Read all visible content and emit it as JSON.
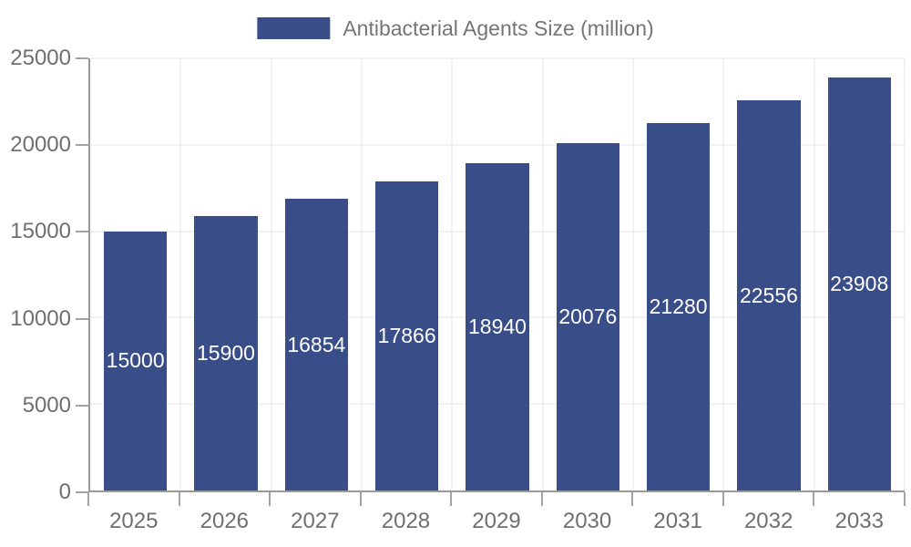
{
  "chart_data": {
    "type": "bar",
    "legend": {
      "label": "Antibacterial Agents Size (million)"
    },
    "categories": [
      "2025",
      "2026",
      "2027",
      "2028",
      "2029",
      "2030",
      "2031",
      "2032",
      "2033"
    ],
    "values": [
      15000,
      15900,
      16854,
      17866,
      18940,
      20076,
      21280,
      22556,
      23908
    ],
    "yticks": [
      0,
      5000,
      10000,
      15000,
      20000,
      25000
    ],
    "ylim": [
      0,
      25000
    ],
    "grid": "horizontal and vertical light gridlines",
    "legend_position": "top-center",
    "colors": {
      "bar": "#394d88",
      "value_label": "#ffffff",
      "axis_line": "#9a9a9a",
      "tick": "#a3a3a3",
      "gridline": "#e6e6ea",
      "axis_text": "#6f6f6f",
      "legend_text": "#757575"
    }
  }
}
